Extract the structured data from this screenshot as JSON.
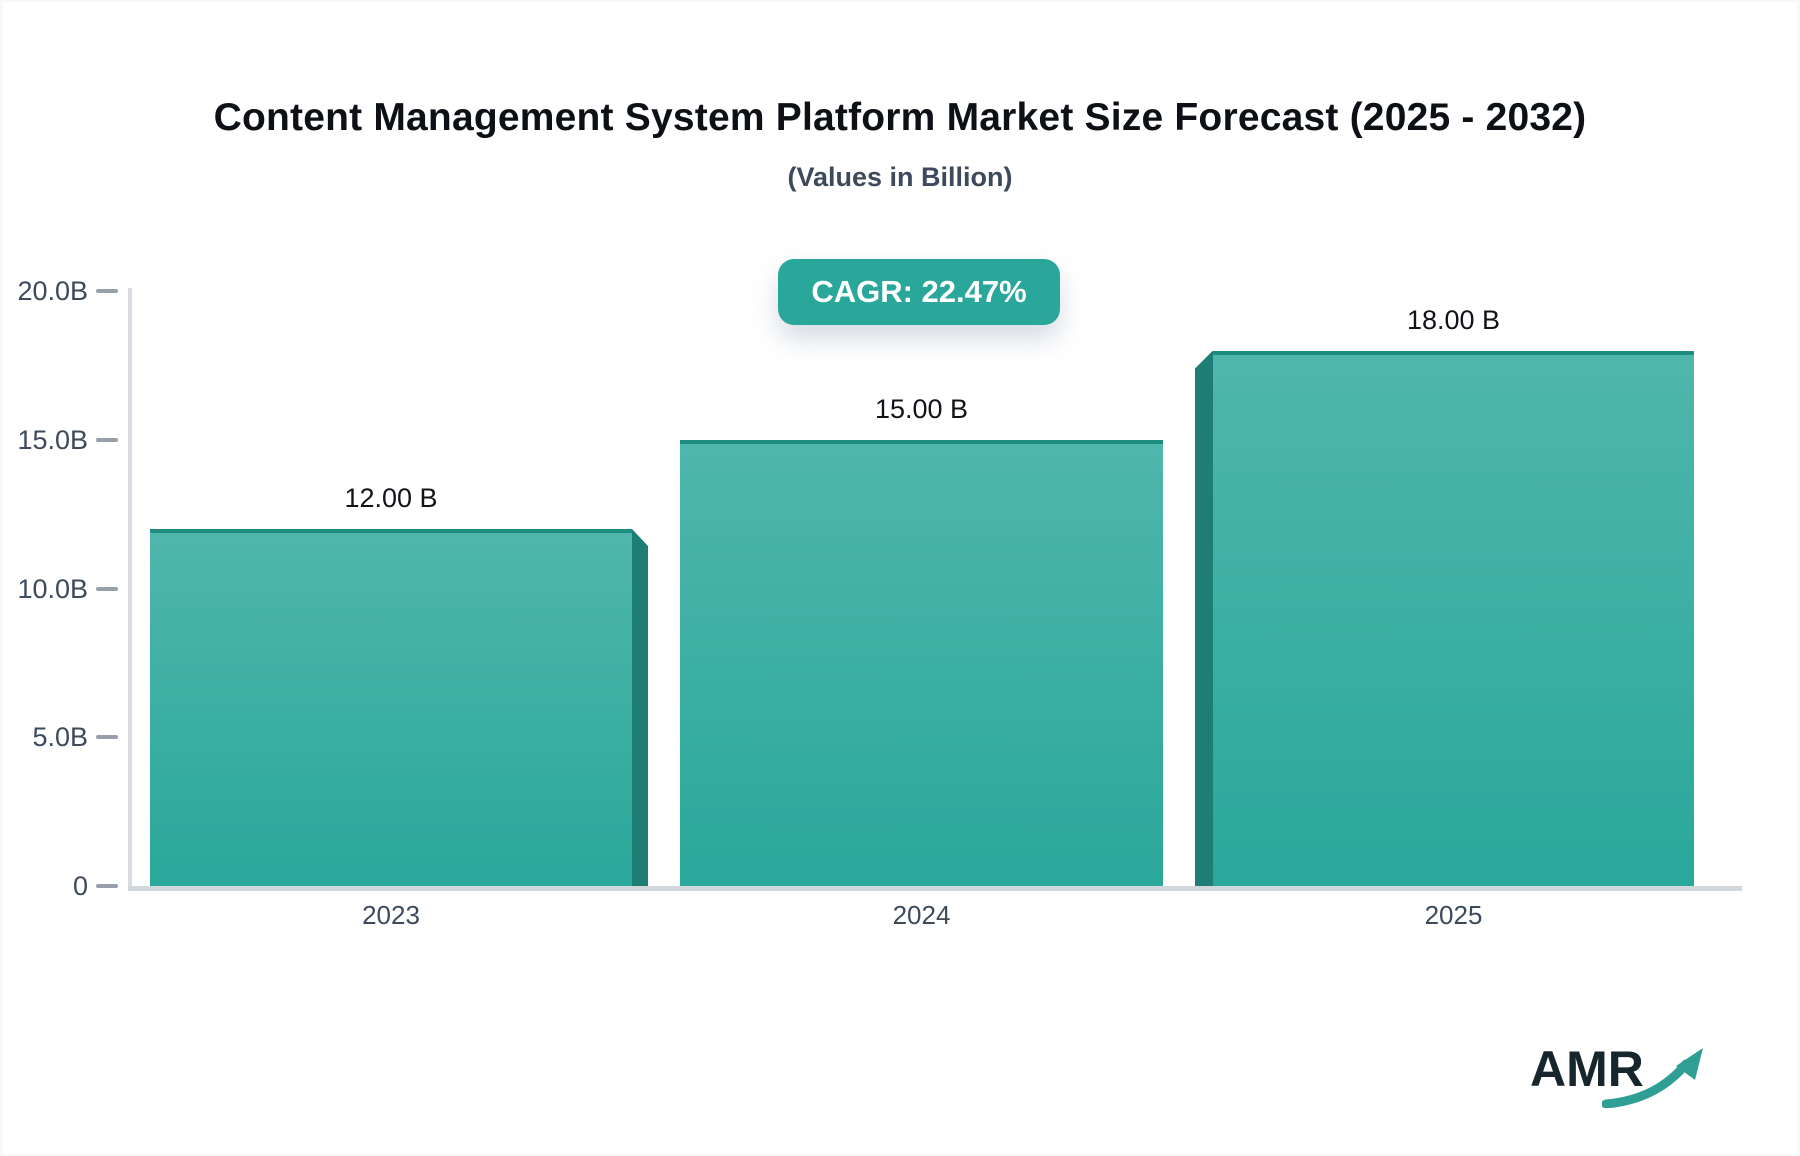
{
  "title": "Content Management System Platform Market Size Forecast (2025 - 2032)",
  "subtitle": "(Values in Billion)",
  "badge": {
    "label": "CAGR: 22.47%",
    "color": "#2aa79b"
  },
  "logo": {
    "text": "AMR",
    "arrow_icon": "trend-arrow-icon",
    "arrow_color": "#2f9e95"
  },
  "chart_data": {
    "type": "bar",
    "title": "Content Management System Platform Market Size Forecast (2025 - 2032)",
    "subtitle": "(Values in Billion)",
    "categories": [
      "2023",
      "2024",
      "2025"
    ],
    "values": [
      12,
      15,
      18
    ],
    "value_labels": [
      "12.00 B",
      "15.00 B",
      "18.00 B"
    ],
    "xlabel": "",
    "ylabel": "",
    "ylim": [
      0,
      20
    ],
    "y_ticks": [
      {
        "value": 20,
        "label": "20.0B"
      },
      {
        "value": 15,
        "label": "15.0B"
      },
      {
        "value": 10,
        "label": "10.0B"
      },
      {
        "value": 5,
        "label": "5.0B"
      },
      {
        "value": 0,
        "label": "0"
      }
    ],
    "grid": false,
    "legend": false,
    "colors": {
      "bar_gradient_top": "#4fb6ac",
      "bar_gradient_bottom": "#2aa89b",
      "bar_top_edge": "#1e8c81",
      "bar_side_3d": "#1e7d74",
      "axis_line": "#d9dde1",
      "baseline": "#d2d7dc",
      "tick_dash": "#97a0aa",
      "tick_label": "#3d4a5c",
      "value_label": "#101418"
    }
  }
}
